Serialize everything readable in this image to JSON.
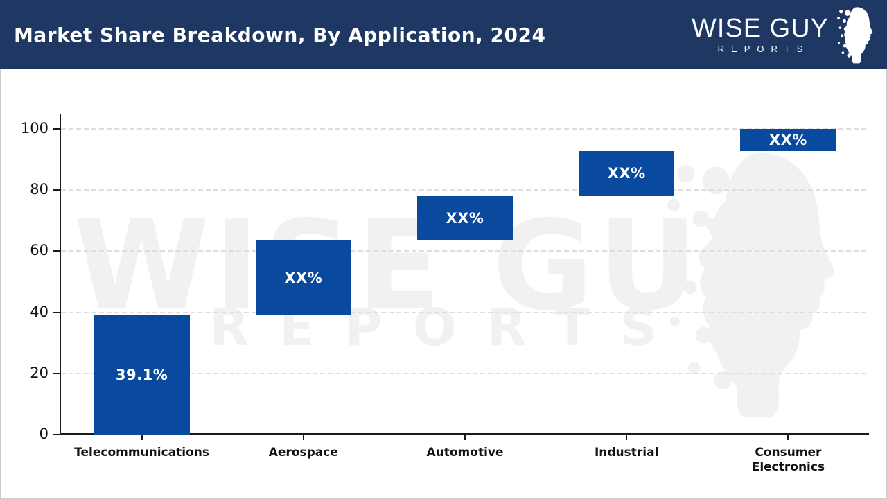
{
  "header": {
    "title": "Market Share Breakdown, By Application, 2024",
    "bg_color": "#1f3763",
    "logo": {
      "line1": "WISE GUY",
      "line2": "REPORTS"
    }
  },
  "watermark": {
    "line1": "WISE GUY",
    "line2": "REPORTS"
  },
  "colors": {
    "bar": "#0a4a9e",
    "bar_label": "#ffffff",
    "axis": "#1a1a1a",
    "grid": "#dedede",
    "header_bg": "#1f3763",
    "watermark": "#f1f1f4"
  },
  "chart_data": {
    "type": "bar",
    "subtype": "floating-waterfall",
    "title": "Market Share Breakdown, By Application, 2024",
    "categories": [
      "Telecommunications",
      "Aerospace",
      "Automotive",
      "Industrial",
      "Consumer Electronics"
    ],
    "segments": [
      {
        "category": "Telecommunications",
        "start": 0,
        "end": 39.1,
        "label": "39.1%"
      },
      {
        "category": "Aerospace",
        "start": 39.1,
        "end": 63.5,
        "label": "XX%"
      },
      {
        "category": "Automotive",
        "start": 63.5,
        "end": 78.0,
        "label": "XX%"
      },
      {
        "category": "Industrial",
        "start": 78.0,
        "end": 92.8,
        "label": "XX%"
      },
      {
        "category": "Consumer Electronics",
        "start": 92.8,
        "end": 100,
        "label": "XX%"
      }
    ],
    "bar_labels": [
      "39.1%",
      "XX%",
      "XX%",
      "XX%",
      "XX%"
    ],
    "xlabel": "",
    "ylabel": "",
    "yticks": [
      0,
      20,
      40,
      60,
      80,
      100
    ],
    "ylim": [
      0,
      104.8
    ],
    "grid": "horizontal-dashed",
    "legend": "none",
    "bar_color": "#0a4a9e"
  }
}
